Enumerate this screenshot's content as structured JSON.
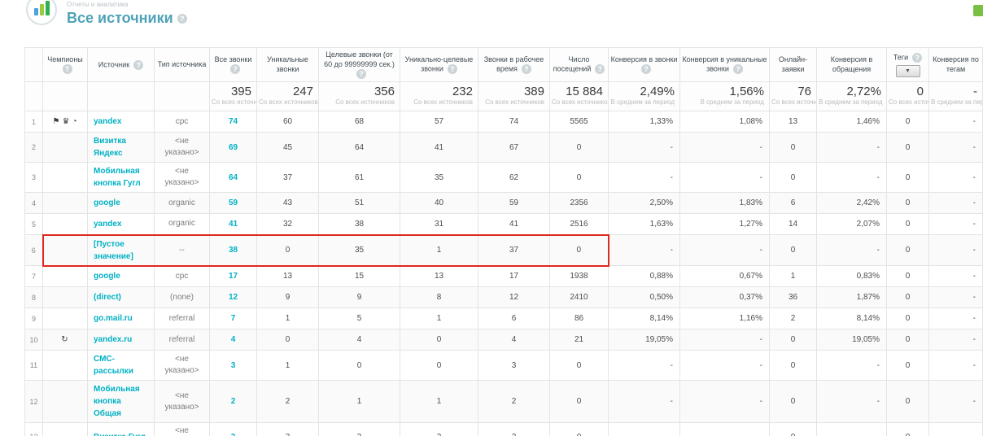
{
  "page": {
    "breadcrumb": "Отчеты и аналитика",
    "title": "Все источники"
  },
  "icons": {
    "help": "?",
    "dropdown": "▼",
    "flag": "⚑",
    "crown": "♛",
    "clock": "◔",
    "sync": "↻"
  },
  "colors": {
    "accent": "#00b1c4",
    "title": "#4fa3b8",
    "highlight_box": "#dd2a1b",
    "chat_widget": "#7ac143"
  },
  "table": {
    "columns": [
      {
        "key": "num",
        "label": "",
        "help": false
      },
      {
        "key": "champions",
        "label": "Чемпионы",
        "help": true
      },
      {
        "key": "source",
        "label": "Источник",
        "help": true
      },
      {
        "key": "type",
        "label": "Тип источника",
        "help": false
      },
      {
        "key": "all_calls",
        "label": "Все звонки",
        "help": true
      },
      {
        "key": "unique_calls",
        "label": "Уникальные звонки",
        "help": false
      },
      {
        "key": "target_calls",
        "label": "Целевые звонки (от 60 до 99999999 сек.)",
        "help": true
      },
      {
        "key": "unique_target_calls",
        "label": "Уникально-целевые звонки",
        "help": true
      },
      {
        "key": "worktime_calls",
        "label": "Звонки в рабочее время",
        "help": true
      },
      {
        "key": "visits",
        "label": "Число посещений",
        "help": true
      },
      {
        "key": "conv_calls",
        "label": "Конверсия в звонки",
        "help": true
      },
      {
        "key": "conv_unique_calls",
        "label": "Конверсия в уникальные звонки",
        "help": true
      },
      {
        "key": "online_requests",
        "label": "Онлайн-заявки",
        "help": false
      },
      {
        "key": "conv_appeals",
        "label": "Конверсия в обращения",
        "help": false
      },
      {
        "key": "tags",
        "label": "Теги",
        "help": true,
        "dropdown": true
      },
      {
        "key": "conv_tags",
        "label": "Конверсия по тегам",
        "help": false
      }
    ],
    "summary": {
      "all_calls": {
        "value": "395",
        "sub": "Со всех источников"
      },
      "unique_calls": {
        "value": "247",
        "sub": "Со всех источников"
      },
      "target_calls": {
        "value": "356",
        "sub": "Со всех источников"
      },
      "unique_target_calls": {
        "value": "232",
        "sub": "Со всех источников"
      },
      "worktime_calls": {
        "value": "389",
        "sub": "Со всех источников"
      },
      "visits": {
        "value": "15 884",
        "sub": "Со всех источников"
      },
      "conv_calls": {
        "value": "2,49%",
        "sub": "В среднем за период"
      },
      "conv_unique_calls": {
        "value": "1,56%",
        "sub": "В среднем за период"
      },
      "online_requests": {
        "value": "76",
        "sub": "Со всех источников"
      },
      "conv_appeals": {
        "value": "2,72%",
        "sub": "В среднем за период"
      },
      "tags": {
        "value": "0",
        "sub": "Со всех источников"
      },
      "conv_tags": {
        "value": "-",
        "sub": "В среднем за период"
      }
    },
    "rows": [
      {
        "num": "1",
        "champions": [
          "flag",
          "crown",
          "clock"
        ],
        "source": "yandex",
        "type": "cpc",
        "all_calls": "74",
        "unique_calls": "60",
        "target_calls": "68",
        "unique_target_calls": "57",
        "worktime_calls": "74",
        "visits": "5565",
        "conv_calls": "1,33%",
        "conv_unique_calls": "1,08%",
        "online_requests": "13",
        "conv_appeals": "1,46%",
        "tags": "0",
        "conv_tags": "-"
      },
      {
        "num": "2",
        "champions": [],
        "source": "Визитка Яндекс",
        "type": "<не указано>",
        "all_calls": "69",
        "unique_calls": "45",
        "target_calls": "64",
        "unique_target_calls": "41",
        "worktime_calls": "67",
        "visits": "0",
        "conv_calls": "-",
        "conv_unique_calls": "-",
        "online_requests": "0",
        "conv_appeals": "-",
        "tags": "0",
        "conv_tags": "-"
      },
      {
        "num": "3",
        "champions": [],
        "source": "Мобильная кнопка Гугл",
        "type": "<не указано>",
        "all_calls": "64",
        "unique_calls": "37",
        "target_calls": "61",
        "unique_target_calls": "35",
        "worktime_calls": "62",
        "visits": "0",
        "conv_calls": "-",
        "conv_unique_calls": "-",
        "online_requests": "0",
        "conv_appeals": "-",
        "tags": "0",
        "conv_tags": "-"
      },
      {
        "num": "4",
        "champions": [],
        "source": "google",
        "type": "organic",
        "all_calls": "59",
        "unique_calls": "43",
        "target_calls": "51",
        "unique_target_calls": "40",
        "worktime_calls": "59",
        "visits": "2356",
        "conv_calls": "2,50%",
        "conv_unique_calls": "1,83%",
        "online_requests": "6",
        "conv_appeals": "2,42%",
        "tags": "0",
        "conv_tags": "-"
      },
      {
        "num": "5",
        "champions": [],
        "source": "yandex",
        "type": "organic",
        "all_calls": "41",
        "unique_calls": "32",
        "target_calls": "38",
        "unique_target_calls": "31",
        "worktime_calls": "41",
        "visits": "2516",
        "conv_calls": "1,63%",
        "conv_unique_calls": "1,27%",
        "online_requests": "14",
        "conv_appeals": "2,07%",
        "tags": "0",
        "conv_tags": "-"
      },
      {
        "num": "6",
        "highlighted": true,
        "champions": [],
        "source": "[Пустое значение]",
        "type": "--",
        "all_calls": "38",
        "unique_calls": "0",
        "target_calls": "35",
        "unique_target_calls": "1",
        "worktime_calls": "37",
        "visits": "0",
        "conv_calls": "-",
        "conv_unique_calls": "-",
        "online_requests": "0",
        "conv_appeals": "-",
        "tags": "0",
        "conv_tags": "-"
      },
      {
        "num": "7",
        "champions": [],
        "source": "google",
        "type": "cpc",
        "all_calls": "17",
        "unique_calls": "13",
        "target_calls": "15",
        "unique_target_calls": "13",
        "worktime_calls": "17",
        "visits": "1938",
        "conv_calls": "0,88%",
        "conv_unique_calls": "0,67%",
        "online_requests": "1",
        "conv_appeals": "0,83%",
        "tags": "0",
        "conv_tags": "-"
      },
      {
        "num": "8",
        "champions": [],
        "source": "(direct)",
        "type": "(none)",
        "all_calls": "12",
        "unique_calls": "9",
        "target_calls": "9",
        "unique_target_calls": "8",
        "worktime_calls": "12",
        "visits": "2410",
        "conv_calls": "0,50%",
        "conv_unique_calls": "0,37%",
        "online_requests": "36",
        "conv_appeals": "1,87%",
        "tags": "0",
        "conv_tags": "-"
      },
      {
        "num": "9",
        "champions": [],
        "source": "go.mail.ru",
        "type": "referral",
        "all_calls": "7",
        "unique_calls": "1",
        "target_calls": "5",
        "unique_target_calls": "1",
        "worktime_calls": "6",
        "visits": "86",
        "conv_calls": "8,14%",
        "conv_unique_calls": "1,16%",
        "online_requests": "2",
        "conv_appeals": "8,14%",
        "tags": "0",
        "conv_tags": "-"
      },
      {
        "num": "10",
        "champions": [
          "sync"
        ],
        "source": "yandex.ru",
        "type": "referral",
        "all_calls": "4",
        "unique_calls": "0",
        "target_calls": "4",
        "unique_target_calls": "0",
        "worktime_calls": "4",
        "visits": "21",
        "conv_calls": "19,05%",
        "conv_unique_calls": "-",
        "online_requests": "0",
        "conv_appeals": "19,05%",
        "tags": "0",
        "conv_tags": "-"
      },
      {
        "num": "11",
        "champions": [],
        "source": "СМС-рассылки",
        "type": "<не указано>",
        "all_calls": "3",
        "unique_calls": "1",
        "target_calls": "0",
        "unique_target_calls": "0",
        "worktime_calls": "3",
        "visits": "0",
        "conv_calls": "-",
        "conv_unique_calls": "-",
        "online_requests": "0",
        "conv_appeals": "-",
        "tags": "0",
        "conv_tags": "-"
      },
      {
        "num": "12",
        "champions": [],
        "source": "Мобильная кнопка Общая",
        "type": "<не указано>",
        "all_calls": "2",
        "unique_calls": "2",
        "target_calls": "1",
        "unique_target_calls": "1",
        "worktime_calls": "2",
        "visits": "0",
        "conv_calls": "-",
        "conv_unique_calls": "-",
        "online_requests": "0",
        "conv_appeals": "-",
        "tags": "0",
        "conv_tags": "-"
      },
      {
        "num": "13",
        "champions": [],
        "source": "Визитка Гугл",
        "type": "<не указано>",
        "all_calls": "2",
        "unique_calls": "2",
        "target_calls": "2",
        "unique_target_calls": "2",
        "worktime_calls": "2",
        "visits": "0",
        "conv_calls": "-",
        "conv_unique_calls": "-",
        "online_requests": "0",
        "conv_appeals": "-",
        "tags": "0",
        "conv_tags": "-"
      }
    ]
  }
}
